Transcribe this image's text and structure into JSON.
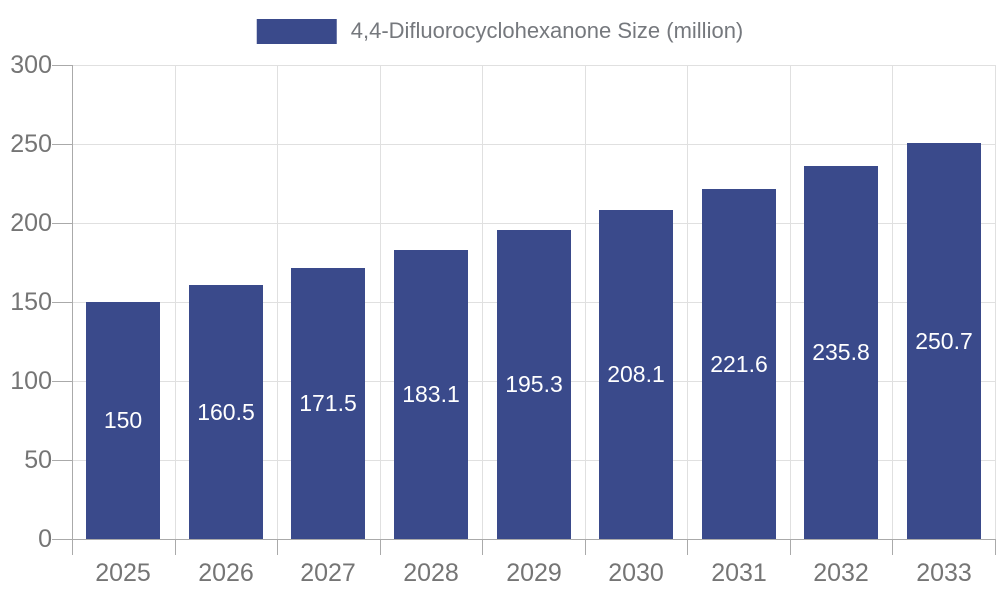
{
  "legend": {
    "label": "4,4-Difluorocyclohexanone Size (million)"
  },
  "chart_data": {
    "type": "bar",
    "title": "",
    "xlabel": "",
    "ylabel": "",
    "series_name": "4,4-Difluorocyclohexanone Size (million)",
    "categories": [
      "2025",
      "2026",
      "2027",
      "2028",
      "2029",
      "2030",
      "2031",
      "2032",
      "2033"
    ],
    "values": [
      150,
      160.5,
      171.5,
      183.1,
      195.3,
      208.1,
      221.6,
      235.8,
      250.7
    ],
    "value_labels": [
      "150",
      "160.5",
      "171.5",
      "183.1",
      "195.3",
      "208.1",
      "221.6",
      "235.8",
      "250.7"
    ],
    "ylim": [
      0,
      300
    ],
    "yticks": [
      "0",
      "50",
      "100",
      "150",
      "200",
      "250",
      "300"
    ],
    "ytick_step": 50,
    "grid": true,
    "legend_position": "top-center",
    "value_label_position": "inside-center",
    "colors": {
      "bar": "#3a4a8b",
      "gridline": "#e0e0e0",
      "axis": "#aaaaaa",
      "tick_text": "#757575",
      "legend_text": "#75787d",
      "value_text": "#ffffff",
      "background": "#ffffff"
    }
  }
}
